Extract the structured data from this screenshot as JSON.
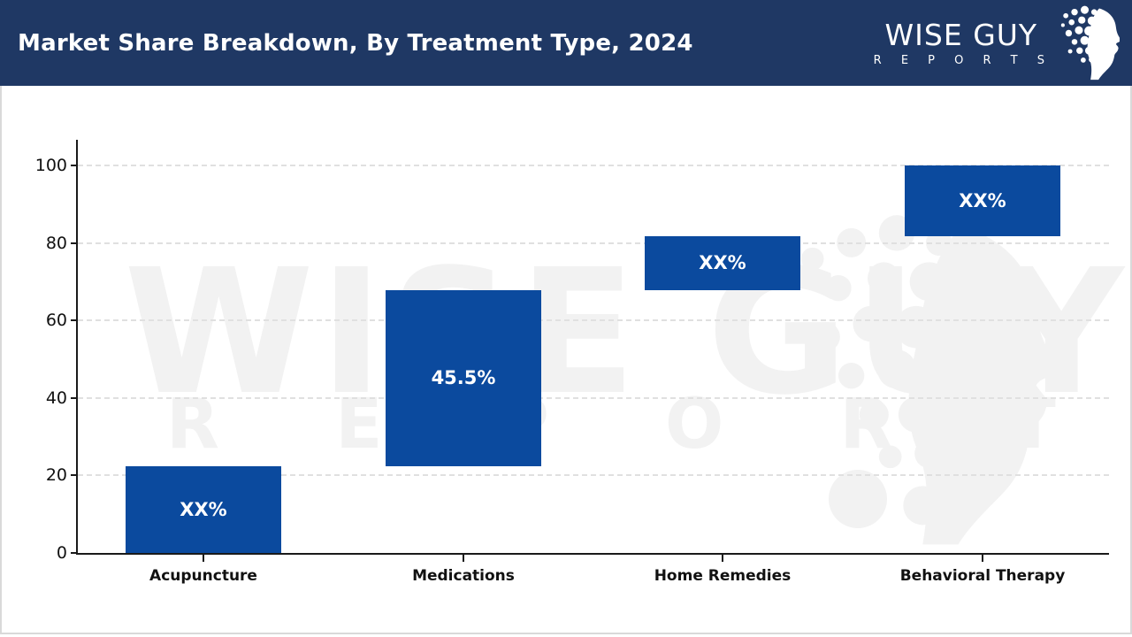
{
  "header": {
    "title": "Market Share Breakdown, By Treatment Type, 2024",
    "logo": {
      "wordmark": "WISE GUY",
      "reports": "R E P O R T S"
    }
  },
  "watermark": {
    "wordmark": "WISE GUY",
    "reports": "R E P O R T S"
  },
  "colors": {
    "header_bg": "#1f3864",
    "bar": "#0b4a9e",
    "grid": "#e0e0e0",
    "axis": "#1a1a1a",
    "bar_label": "#ffffff",
    "watermark": "#f2f2f2",
    "frame": "#d9d9d9"
  },
  "chart_data": {
    "type": "bar",
    "variant": "waterfall",
    "title": "Market Share Breakdown, By Treatment Type, 2024",
    "xlabel": "",
    "ylabel": "",
    "categories": [
      "Acupuncture",
      "Medications",
      "Home Remedies",
      "Behavioral Therapy"
    ],
    "bars": [
      {
        "category": "Acupuncture",
        "start": 0,
        "end": 22.4,
        "label": "XX%"
      },
      {
        "category": "Medications",
        "start": 22.4,
        "end": 67.9,
        "label": "45.5%"
      },
      {
        "category": "Home Remedies",
        "start": 67.9,
        "end": 81.8,
        "label": "XX%"
      },
      {
        "category": "Behavioral Therapy",
        "start": 81.8,
        "end": 100,
        "label": "XX%"
      }
    ],
    "yticks": [
      0,
      20,
      40,
      60,
      80,
      100
    ],
    "ylim": [
      0,
      107
    ],
    "grid": "horizontal-dashed",
    "legend": "none"
  }
}
